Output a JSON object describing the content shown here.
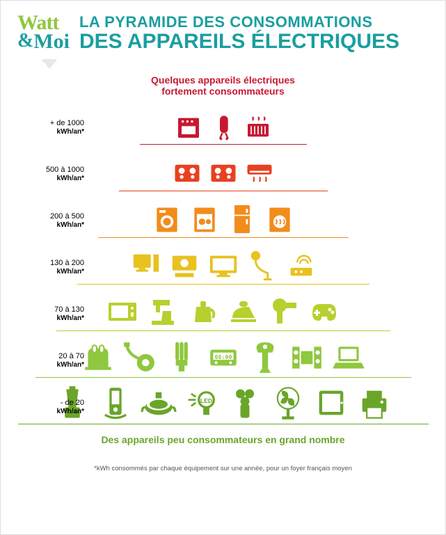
{
  "logo": {
    "line1": "Watt",
    "amp": "&",
    "line2": "Moi",
    "color1": "#8fc73e",
    "color2": "#1a9ea0"
  },
  "title": {
    "line1": "LA PYRAMIDE DES CONSOMMATIONS",
    "line2": "DES APPAREILS ÉLECTRIQUES",
    "color": "#1a9ea0"
  },
  "subtitle": {
    "line1": "Quelques appareils électriques",
    "line2": "fortement consommateurs",
    "color": "#c81832"
  },
  "bottomline": {
    "text": "Des appareils peu consommateurs en grand nombre",
    "color": "#6aa52a"
  },
  "footnote": "*kWh consommés par chaque équipement sur une année, pour un foyer français moyen",
  "tiers": [
    {
      "range": "+ de 1000",
      "unit": "kWh/an*",
      "color": "#c81832",
      "sepWidth": 240,
      "icons": [
        "oven",
        "waterheater",
        "radiator"
      ]
    },
    {
      "range": "500 à 1000",
      "unit": "kWh/an*",
      "color": "#e84020",
      "sepWidth": 300,
      "icons": [
        "hob",
        "hob2",
        "ac"
      ]
    },
    {
      "range": "200 à 500",
      "unit": "kWh/an*",
      "color": "#f28c1c",
      "sepWidth": 360,
      "icons": [
        "washer",
        "dishwasher",
        "fridge",
        "dryer"
      ]
    },
    {
      "range": "130 à 200",
      "unit": "kWh/an*",
      "color": "#e8c21e",
      "sepWidth": 420,
      "icons": [
        "desktop",
        "tvbox",
        "tv",
        "lamp",
        "modem"
      ]
    },
    {
      "range": "70 à 130",
      "unit": "kWh/an*",
      "color": "#b9cf2e",
      "sepWidth": 480,
      "icons": [
        "microwave",
        "coffeemaker",
        "kettle",
        "iron",
        "hairdryer",
        "gamepad"
      ]
    },
    {
      "range": "20 à 70",
      "unit": "kWh/an*",
      "color": "#8fc73e",
      "sepWidth": 540,
      "icons": [
        "toaster",
        "vacuum",
        "cfl",
        "clockradio",
        "mixer",
        "hifi",
        "laptop"
      ]
    },
    {
      "range": "- de 20",
      "unit": "kWh/an*",
      "color": "#6aa52a",
      "sepWidth": 590,
      "icons": [
        "blender",
        "phone",
        "cooker",
        "led",
        "shaver",
        "fan",
        "tablet",
        "printer"
      ]
    }
  ]
}
